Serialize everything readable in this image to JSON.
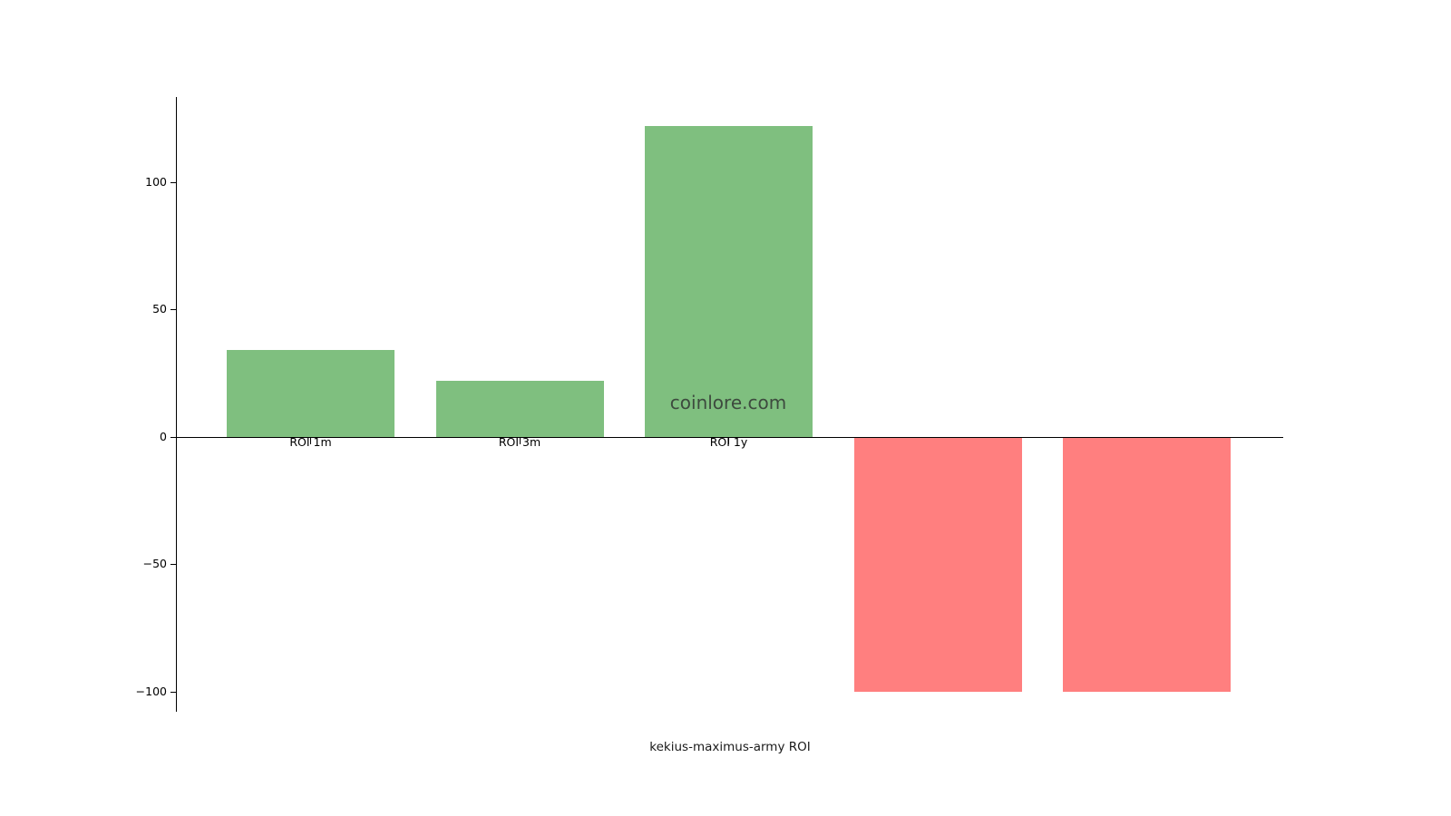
{
  "page": {
    "background": "#ffffff"
  },
  "watermark": {
    "text": "coinlore.com",
    "color": "#3d4a3e"
  },
  "chart_data": {
    "type": "bar",
    "title": "kekius-maximus-army ROI",
    "categories": [
      "ROI 1m",
      "ROI 3m",
      "ROI 1y",
      "",
      ""
    ],
    "values": [
      34,
      22,
      122,
      -100,
      -100
    ],
    "bar_colors": [
      "#7fbf7f",
      "#7fbf7f",
      "#7fbf7f",
      "#ff7f7f",
      "#ff7f7f"
    ],
    "positive_color": "#7fbf7f",
    "negative_color": "#ff7f7f",
    "axis_color": "#000000",
    "text_color": "#1a1a1a",
    "yticks": [
      -100,
      -50,
      0,
      50,
      100
    ],
    "ytick_labels": [
      "−100",
      "−50",
      "0",
      "50",
      "100"
    ],
    "ylim": [
      -108,
      133
    ],
    "xlabel": "",
    "ylabel": "",
    "grid": false,
    "legend": null,
    "baseline": 0
  }
}
